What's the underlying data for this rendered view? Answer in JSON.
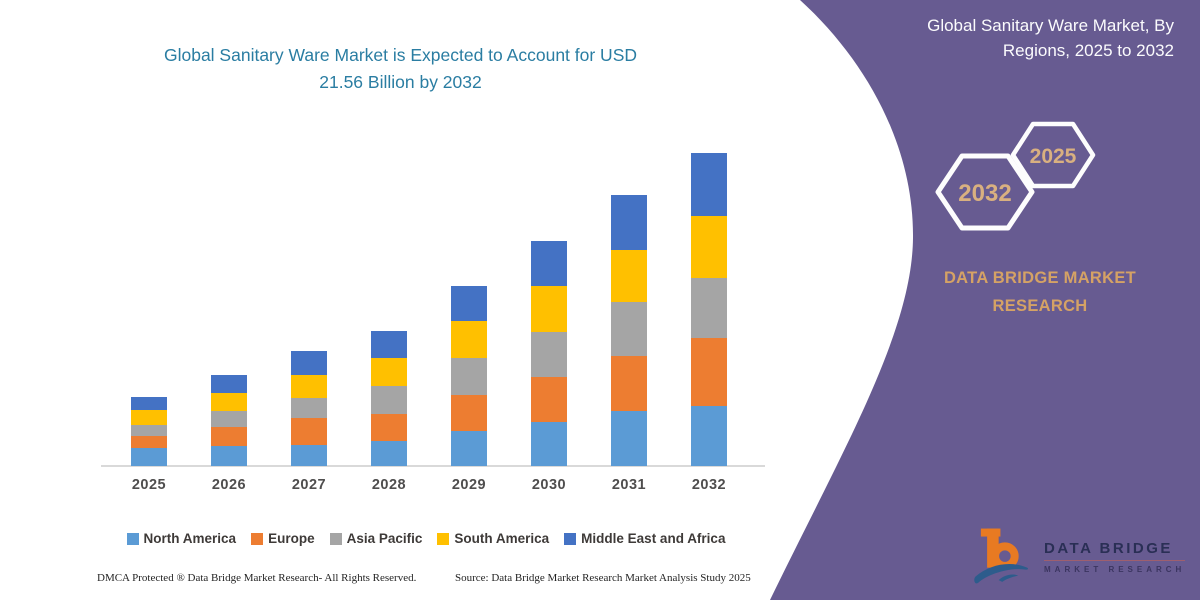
{
  "header": {
    "line1": "Global Sanitary Ware Market is Expected to Account for USD",
    "line2": "21.56 Billion by 2032",
    "color": "#2a7da2"
  },
  "chart_data": {
    "type": "bar",
    "stacked": true,
    "title": "Global Sanitary Ware Market is Expected to Account for USD 21.56 Billion by 2032",
    "unit": "USD Billion",
    "categories": [
      "2025",
      "2026",
      "2027",
      "2028",
      "2029",
      "2030",
      "2031",
      "2032"
    ],
    "series": [
      {
        "name": "North America",
        "color": "#5B9BD5",
        "values": [
          1.21,
          1.4,
          1.45,
          1.75,
          2.44,
          3.02,
          3.77,
          4.14
        ]
      },
      {
        "name": "Europe",
        "color": "#ED7D31",
        "values": [
          0.86,
          1.28,
          1.86,
          1.86,
          2.44,
          3.14,
          3.84,
          4.66
        ]
      },
      {
        "name": "Asia Pacific",
        "color": "#A5A5A5",
        "values": [
          0.77,
          1.09,
          1.4,
          1.91,
          2.56,
          3.07,
          3.68,
          4.12
        ]
      },
      {
        "name": "South America",
        "color": "#FFC000",
        "values": [
          1.05,
          1.23,
          1.58,
          1.93,
          2.56,
          3.14,
          3.61,
          4.31
        ]
      },
      {
        "name": "Middle East and Africa",
        "color": "#4472C4",
        "values": [
          0.86,
          1.28,
          1.63,
          1.86,
          2.4,
          3.16,
          3.79,
          4.33
        ]
      }
    ],
    "totals": [
      4.75,
      6.28,
      7.92,
      9.31,
      12.4,
      15.53,
      18.69,
      21.56
    ],
    "ylim": [
      0,
      21.56
    ],
    "grid": false,
    "y_axis_visible": false,
    "legend_position": "bottom"
  },
  "footer": {
    "left": "DMCA Protected ® Data Bridge Market Research-  All Rights Reserved.",
    "right": "Source: Data Bridge Market Research  Market Analysis Study 2025"
  },
  "side_panel": {
    "bg_color": "#675b91",
    "title_line1": "Global Sanitary Ware Market, By",
    "title_line2": "Regions, 2025 to 2032",
    "hexagons": [
      {
        "label": "2032"
      },
      {
        "label": "2025"
      }
    ],
    "hex_label_color": "#d9b080",
    "brand_line1": "DATA BRIDGE MARKET",
    "brand_line2": "RESEARCH",
    "brand_color": "#d5a265"
  },
  "logo": {
    "name": "DATA BRIDGE",
    "tagline": "MARKET RESEARCH",
    "b_color": "#e87a22",
    "swoosh_color": "#2d5c8c"
  }
}
